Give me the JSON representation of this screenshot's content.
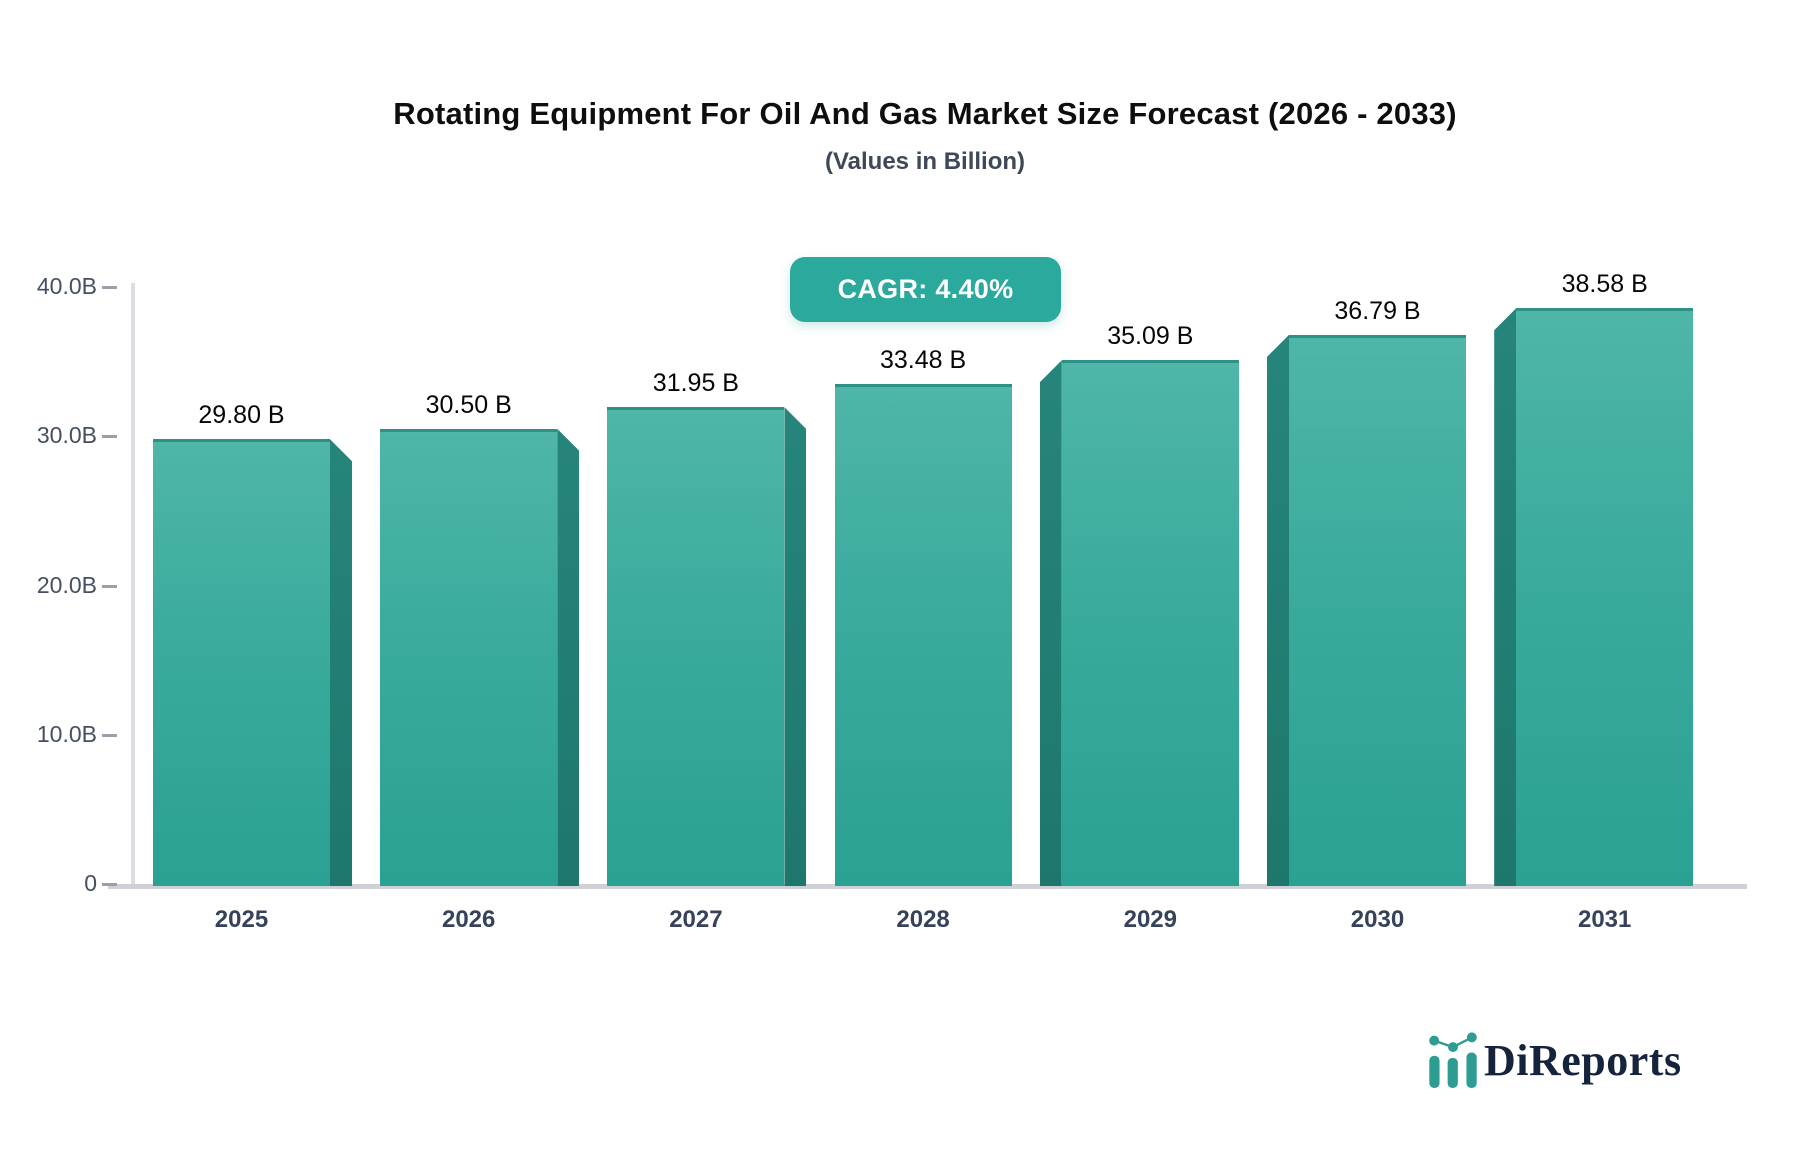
{
  "header": {
    "title": "Rotating Equipment For Oil And Gas Market Size Forecast (2026 - 2033)",
    "subtitle": "(Values in Billion)"
  },
  "badge": {
    "label": "CAGR: 4.40%",
    "background": "#2aa99c",
    "text_color": "#ffffff"
  },
  "chart_data": {
    "type": "bar",
    "title": "Rotating Equipment For Oil And Gas Market Size Forecast (2026 - 2033)",
    "subtitle": "(Values in Billion)",
    "categories": [
      "2025",
      "2026",
      "2027",
      "2028",
      "2029",
      "2030",
      "2031"
    ],
    "values": [
      29.8,
      30.5,
      31.95,
      33.48,
      35.09,
      36.79,
      38.58
    ],
    "value_labels": [
      "29.80 B",
      "30.50 B",
      "31.95 B",
      "33.48 B",
      "35.09 B",
      "36.79 B",
      "38.58 B"
    ],
    "xlabel": "",
    "ylabel": "",
    "ylim": [
      0,
      40
    ],
    "ytick_labels": [
      "0",
      "10.0B",
      "20.0B",
      "30.0B",
      "40.0B"
    ],
    "ytick_values": [
      0,
      10,
      20,
      30,
      40
    ],
    "grid": false,
    "legend": "none",
    "effect": "3d-perspective-bars",
    "cagr": "4.40%",
    "colors": {
      "bar_top": "#4fb6a8",
      "bar_bottom": "#2aa193",
      "bar_side": "#1f7d73",
      "axis_line": "#cfd1d6",
      "tick_text": "#454f5f",
      "category_text": "#36415a",
      "value_text": "#060606"
    }
  },
  "logo": {
    "text": "DiReports",
    "icon": "mini-bar-line-chart-icon",
    "accent_color": "#2d9c93",
    "text_color": "#16233c"
  }
}
